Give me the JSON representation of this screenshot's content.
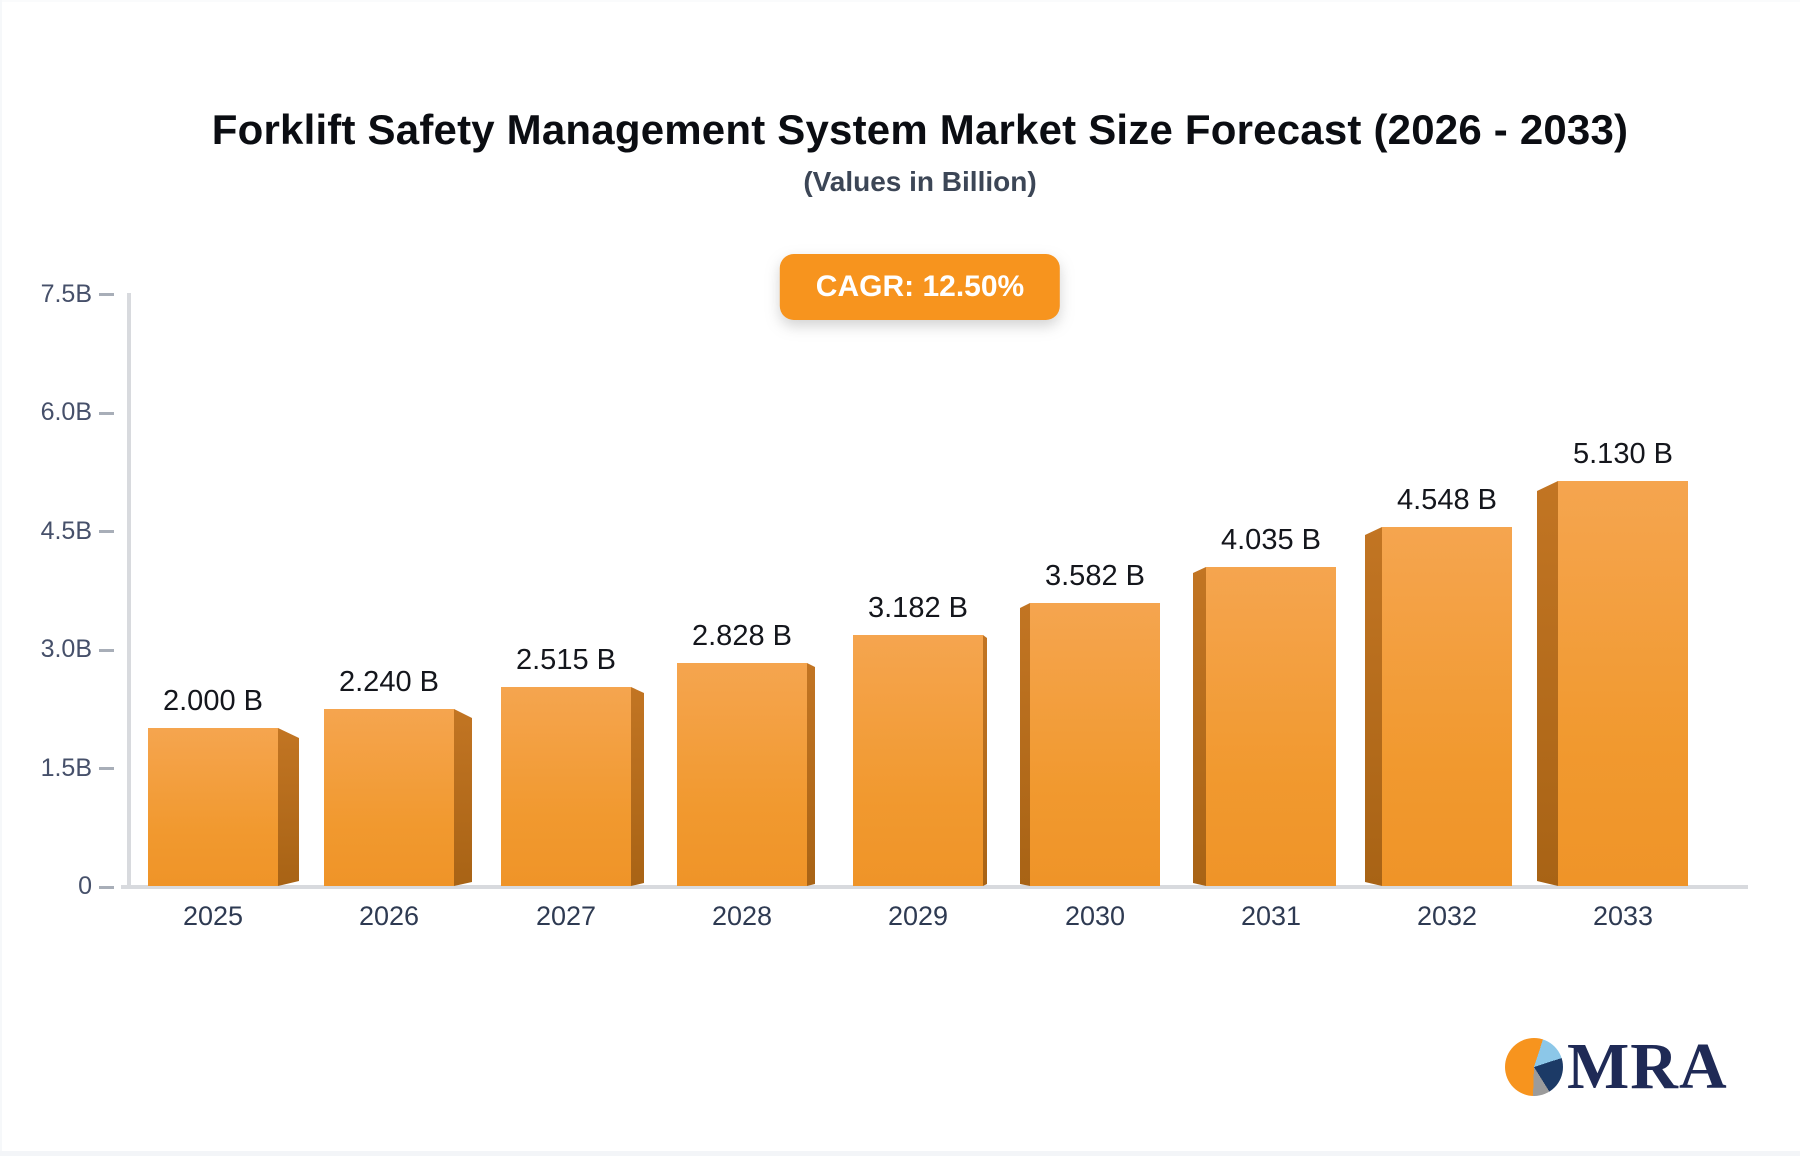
{
  "title": "Forklift Safety Management System Market Size Forecast (2026 - 2033)",
  "subtitle": "(Values in Billion)",
  "cagr_badge": "CAGR: 12.50%",
  "chart_data": {
    "type": "bar",
    "title": "Forklift Safety Management System Market Size Forecast (2026 - 2033)",
    "subtitle": "(Values in Billion)",
    "xlabel": "",
    "ylabel": "",
    "unit": "Billion",
    "categories": [
      "2025",
      "2026",
      "2027",
      "2028",
      "2029",
      "2030",
      "2031",
      "2032",
      "2033"
    ],
    "values": [
      2.0,
      2.24,
      2.515,
      2.828,
      3.182,
      3.582,
      4.035,
      4.548,
      5.13
    ],
    "value_labels": [
      "2.000 B",
      "2.240 B",
      "2.515 B",
      "2.828 B",
      "3.182 B",
      "3.582 B",
      "4.035 B",
      "4.548 B",
      "5.130 B"
    ],
    "ylim": [
      0,
      7.5
    ],
    "yticks": [
      {
        "label": "7.5B",
        "v": 7.5
      },
      {
        "label": "6.0B",
        "v": 6.0
      },
      {
        "label": "4.5B",
        "v": 4.5
      },
      {
        "label": "3.0B",
        "v": 3.0
      },
      {
        "label": "1.5B",
        "v": 1.5
      },
      {
        "label": "0",
        "v": 0
      }
    ],
    "grid": false,
    "legend": false,
    "style_3d": true,
    "side_widths": [
      21,
      18,
      13,
      8,
      4,
      10,
      13,
      17,
      21
    ],
    "side_dirs": [
      "r",
      "r",
      "r",
      "r",
      "r",
      "l",
      "l",
      "l",
      "l"
    ],
    "bar_color_top": "#f5a54f",
    "bar_color_bottom": "#ef9428",
    "bar_side_color": "#b06a1b",
    "axis_color": "#d8dade",
    "tick_color": "#a8aeb8",
    "label_color": "#14161c"
  },
  "colors": {
    "accent_orange": "#f7941e",
    "title_text": "#0b0d12",
    "subtitle_text": "#3c4656",
    "year_text": "#2e3a52",
    "ytick_text": "#46506a"
  },
  "logo": {
    "text": "MRA",
    "pie_orange": "#f7941e",
    "pie_lightblue": "#8cc7e8",
    "pie_navy": "#1c3a66",
    "pie_gray": "#9b9b9b",
    "text_color": "#1f2a56"
  }
}
